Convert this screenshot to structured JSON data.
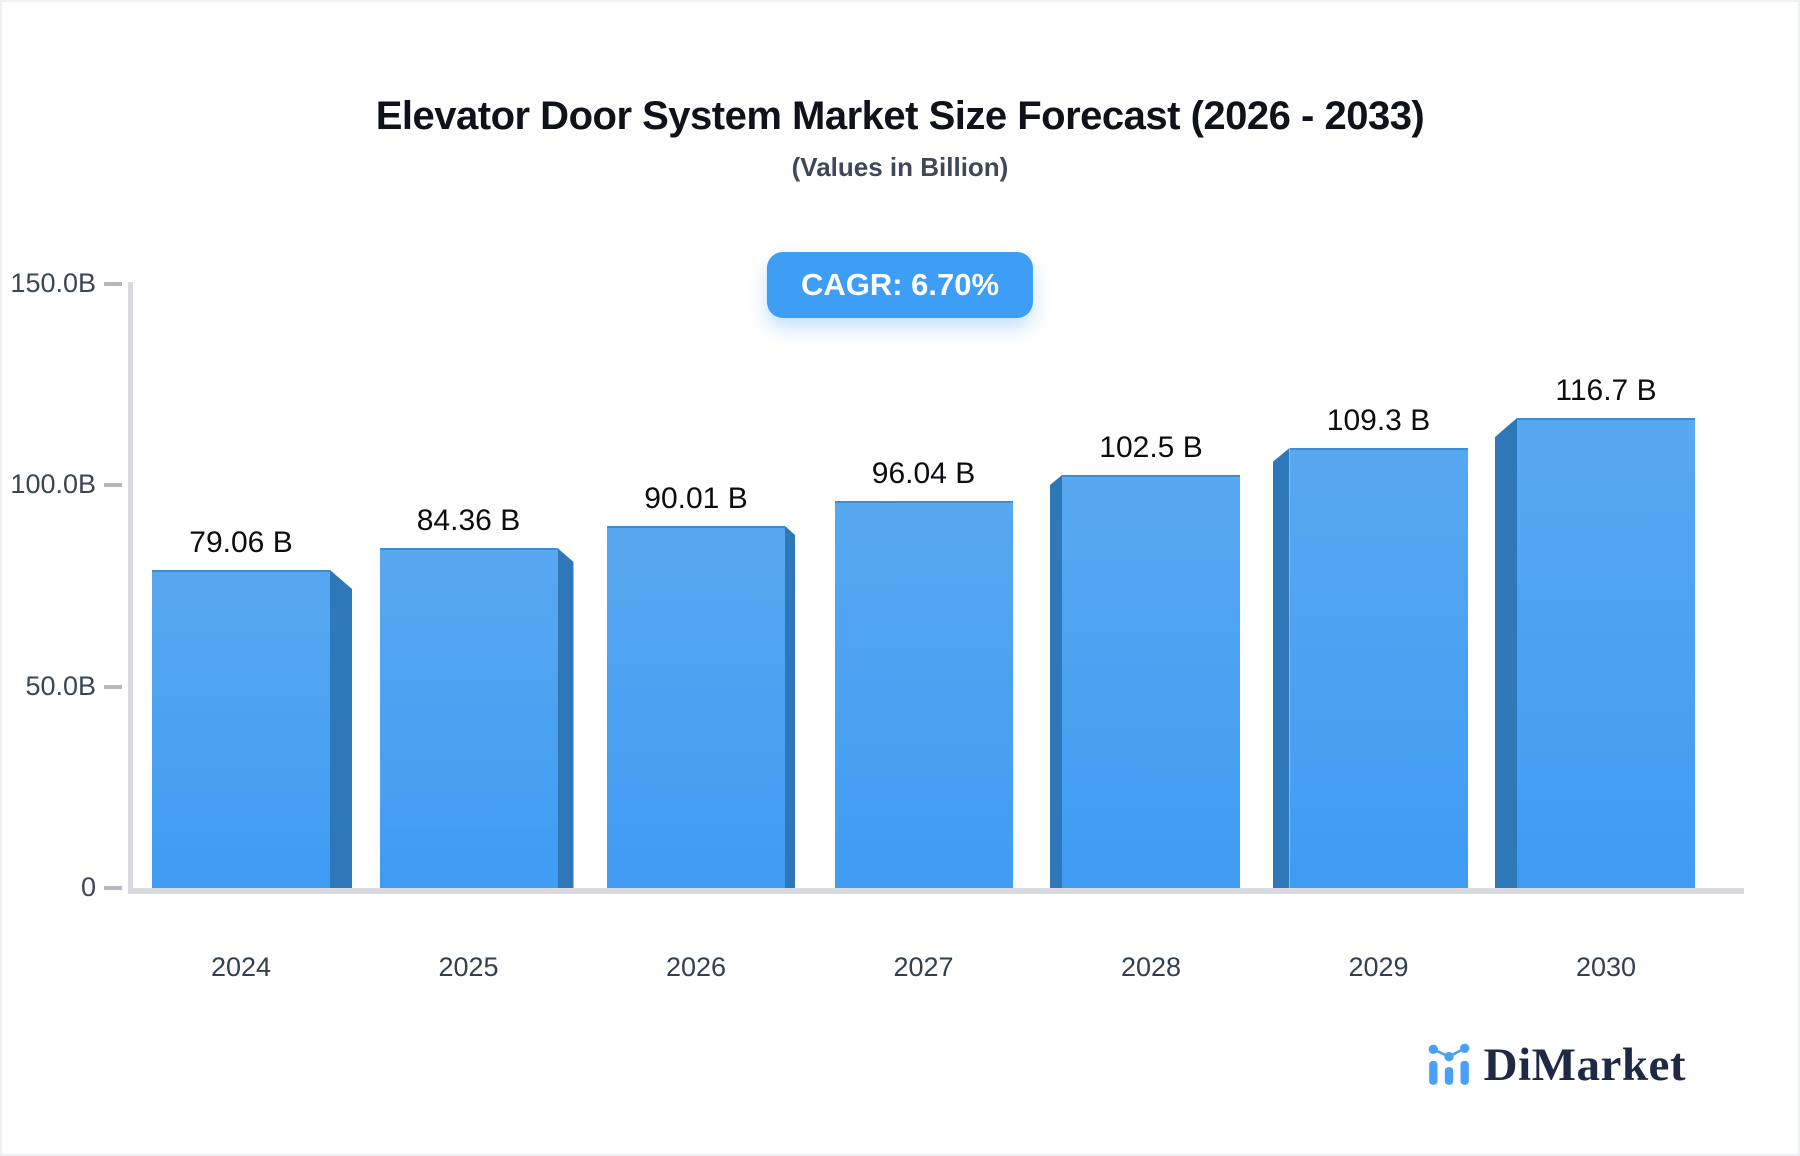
{
  "title": "Elevator Door System Market Size Forecast (2026 - 2033)",
  "subtitle": "(Values in Billion)",
  "badge": {
    "label": "CAGR: 6.70%"
  },
  "chart_data": {
    "type": "bar",
    "title": "Elevator Door System Market Size Forecast (2026 - 2033)",
    "subtitle": "(Values in Billion)",
    "cagr": "6.70%",
    "categories": [
      "2024",
      "2025",
      "2026",
      "2027",
      "2028",
      "2029",
      "2030"
    ],
    "values": [
      79.06,
      84.36,
      90.01,
      96.04,
      102.5,
      109.3,
      116.7
    ],
    "value_labels": [
      "79.06 B",
      "84.36 B",
      "90.01 B",
      "96.04 B",
      "102.5 B",
      "109.3 B",
      "116.7 B"
    ],
    "xlabel": "",
    "ylabel": "",
    "ylim": [
      0,
      150
    ],
    "yticks": [
      {
        "value": 0,
        "label": "0"
      },
      {
        "value": 50,
        "label": "50.0B"
      },
      {
        "value": 100,
        "label": "100.0B"
      },
      {
        "value": 150,
        "label": "150.0B"
      }
    ],
    "grid": false,
    "legend": "none",
    "bar_style": "3d-beveled"
  },
  "logo": {
    "text": "DiMarket"
  },
  "colors": {
    "accent_blue": "#3e9df5",
    "bar_top": "#58a8f0",
    "bar_bottom": "#3f9cf3",
    "bar_side": "#2e77b8",
    "axis_line": "#d7d9df",
    "logo_blue": "#4aa0f6",
    "logo_navy": "#1e2946"
  }
}
